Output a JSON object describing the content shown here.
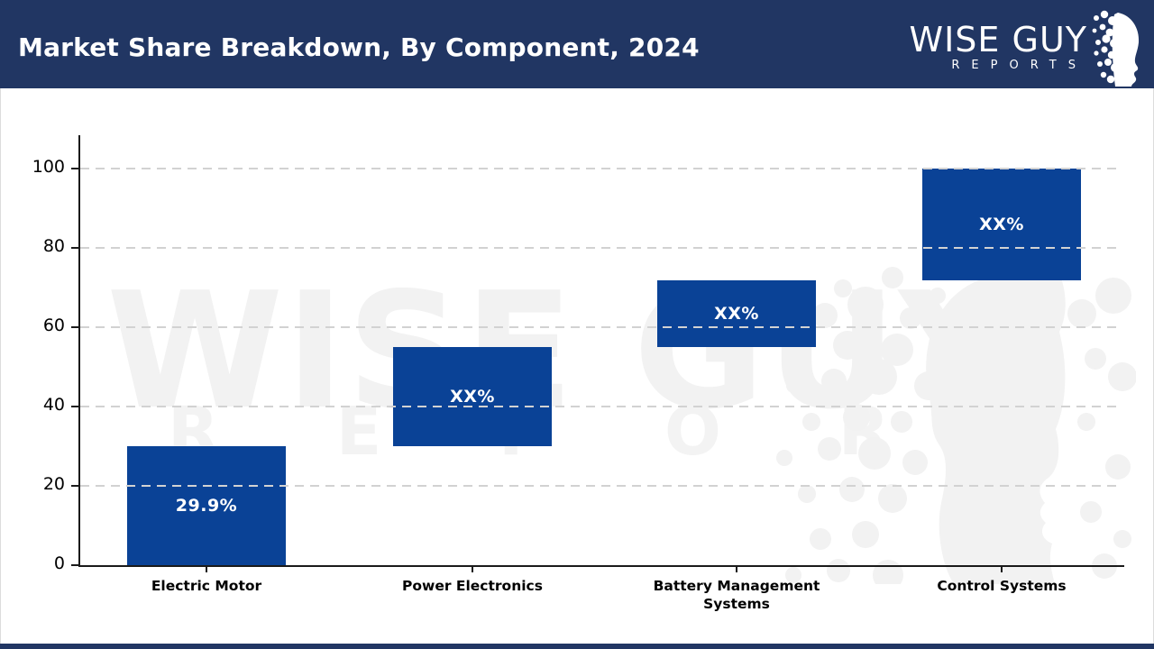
{
  "header": {
    "title": "Market Share Breakdown, By Component, 2024",
    "bg_color": "#213663",
    "logo": {
      "line1": "WISE GUY",
      "line2": "REPORTS"
    }
  },
  "watermark": {
    "line1": "WISE GUY",
    "line2": "R E P O R T S"
  },
  "chart_data": {
    "type": "bar",
    "subtype": "waterfall",
    "title": "Market Share Breakdown, By Component, 2024",
    "categories": [
      "Electric Motor",
      "Power Electronics",
      "Battery Management Systems",
      "Control Systems"
    ],
    "series": [
      {
        "name": "Market Share",
        "segments": [
          {
            "start": 0,
            "end": 29.9
          },
          {
            "start": 29.9,
            "end": 54.9
          },
          {
            "start": 54.9,
            "end": 71.9
          },
          {
            "start": 71.9,
            "end": 100
          }
        ]
      }
    ],
    "bar_labels": [
      "29.9%",
      "XX%",
      "XX%",
      "XX%"
    ],
    "ylim": [
      0,
      100
    ],
    "yticks": [
      0,
      20,
      40,
      60,
      80,
      100
    ],
    "grid": "horizontal dashed",
    "legend": "none",
    "bar_color": "#0a4296",
    "label_color": "#ffffff"
  }
}
